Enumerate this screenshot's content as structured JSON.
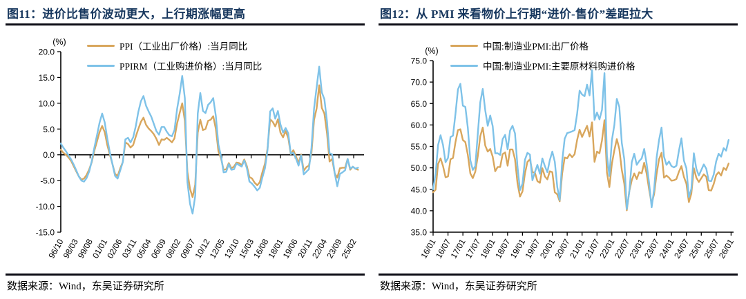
{
  "colors": {
    "title_navy": "#17375E",
    "rule_black": "#0b0b14",
    "line_tan": "#D8A65C",
    "line_blue": "#7EC2E8",
    "axis_black": "#000000"
  },
  "left_panel": {
    "title": "图11：进价比售价波动更大，上行期涨幅更高",
    "source": "数据来源：Wind，东吴证券研究所"
  },
  "right_panel": {
    "title": "图12：从 PMI 来看物价上行期“进价-售价”差距拉大",
    "source": "数据来源：Wind，东吴证券研究所"
  },
  "chart_data": [
    {
      "type": "line",
      "target": "ppi-chart-svg",
      "unit": "(%)",
      "ylim": [
        -15,
        20
      ],
      "yticks": [
        20,
        15,
        10,
        5,
        0,
        -5,
        -10,
        -15
      ],
      "x_axis_at": "zero",
      "x_start": "1996/10",
      "x_end": "2025/07",
      "xticks": [
        "96/10",
        "98/03",
        "99/08",
        "01/01",
        "02/06",
        "03/11",
        "05/04",
        "06/09",
        "08/02",
        "09/07",
        "10/12",
        "12/05",
        "13/10",
        "15/03",
        "16/08",
        "18/01",
        "19/06",
        "20/11",
        "22/04",
        "23/09",
        "25/02"
      ],
      "xtick_step_months": 17,
      "data_step_months": 3,
      "xmax_months": 352,
      "grid": false,
      "legend_position": "top-left-stacked",
      "series": [
        {
          "name": "PPI（工业出厂价格）:当月同比",
          "color": "#D8A65C",
          "values": [
            1.0,
            0.4,
            0.0,
            -0.5,
            -1.2,
            -2.2,
            -3.2,
            -4.2,
            -4.8,
            -4.6,
            -3.9,
            -2.8,
            -1.4,
            0.8,
            2.6,
            4.4,
            5.6,
            4.4,
            1.9,
            0.0,
            -1.8,
            -3.7,
            -4.1,
            -2.6,
            -1.4,
            2.4,
            2.1,
            1.4,
            1.9,
            3.5,
            5.0,
            6.4,
            7.2,
            5.8,
            5.1,
            4.6,
            4.0,
            3.1,
            1.9,
            3.0,
            2.9,
            3.3,
            2.9,
            2.4,
            3.2,
            6.1,
            8.1,
            10.0,
            6.6,
            -3.3,
            -6.6,
            -8.2,
            -5.8,
            4.3,
            6.8,
            4.8,
            5.0,
            6.6,
            6.8,
            7.5,
            5.0,
            0.7,
            -0.7,
            -2.9,
            -2.8,
            -1.6,
            -2.6,
            -2.3,
            -1.5,
            -1.6,
            -2.0,
            -0.9,
            -2.2,
            -4.3,
            -4.6,
            -5.4,
            -5.9,
            -5.3,
            -3.4,
            -1.7,
            1.2,
            6.9,
            6.4,
            5.5,
            6.9,
            4.3,
            3.4,
            4.6,
            3.3,
            0.1,
            0.9,
            -0.3,
            -1.6,
            0.1,
            -3.1,
            -2.4,
            -2.1,
            0.3,
            6.8,
            9.0,
            13.5,
            9.1,
            8.0,
            4.2,
            -1.3,
            -0.8,
            -3.6,
            -4.4,
            -2.6,
            -2.5,
            -2.5,
            -0.8,
            -2.9,
            -2.3,
            -2.7,
            -2.9
          ]
        },
        {
          "name": "PPIRM（工业购进价格）:当月同比",
          "color": "#7EC2E8",
          "values": [
            2.2,
            1.4,
            0.7,
            -0.1,
            -0.9,
            -1.9,
            -3.0,
            -4.2,
            -5.0,
            -5.2,
            -4.5,
            -3.2,
            -1.2,
            1.4,
            3.8,
            6.2,
            8.0,
            6.3,
            3.2,
            0.4,
            -1.8,
            -4.1,
            -4.6,
            -3.0,
            -1.4,
            3.0,
            3.3,
            2.4,
            3.4,
            5.5,
            8.3,
            10.4,
            11.4,
            9.5,
            8.4,
            7.4,
            6.0,
            4.6,
            3.9,
            5.4,
            5.4,
            4.5,
            3.8,
            3.6,
            4.8,
            8.9,
            11.8,
            15.3,
            11.0,
            -5.3,
            -9.5,
            -11.4,
            -8.0,
            8.0,
            12.0,
            8.5,
            8.1,
            9.7,
            10.2,
            11.0,
            7.5,
            2.0,
            -0.3,
            -3.4,
            -3.3,
            -1.8,
            -2.9,
            -2.8,
            -1.7,
            -2.0,
            -2.3,
            -1.1,
            -2.6,
            -5.2,
            -5.6,
            -6.2,
            -6.9,
            -6.4,
            -4.4,
            -2.6,
            0.9,
            8.4,
            9.0,
            7.0,
            8.5,
            5.9,
            4.3,
            5.2,
            4.2,
            0.2,
            0.4,
            -0.7,
            -2.1,
            -0.1,
            -3.8,
            -3.3,
            -2.8,
            1.3,
            9.0,
            13.1,
            17.1,
            12.1,
            10.8,
            6.5,
            0.3,
            0.1,
            -3.6,
            -6.1,
            -3.7,
            -3.4,
            -3.0,
            -0.8,
            -2.7,
            -2.3,
            -2.7,
            -2.5
          ]
        }
      ]
    },
    {
      "type": "line",
      "target": "pmi-chart-svg",
      "unit": "(%)",
      "ylim": [
        35,
        75
      ],
      "yticks": [
        75,
        70,
        65,
        60,
        55,
        50,
        45,
        40,
        35
      ],
      "x_axis_at": "bottom",
      "x_start": "2016/01",
      "x_end": "2025/12",
      "xticks": [
        "16/01",
        "16/07",
        "17/01",
        "17/07",
        "18/01",
        "18/07",
        "19/01",
        "19/07",
        "20/01",
        "20/07",
        "21/01",
        "21/07",
        "22/01",
        "22/07",
        "23/01",
        "23/07",
        "24/01",
        "24/07",
        "25/01",
        "25/07",
        "26/01"
      ],
      "xtick_step_months": 6,
      "data_step_months": 1,
      "xmax_months": 121,
      "grid": false,
      "legend_position": "top-left-stacked",
      "series": [
        {
          "name": "中国:制造业PMI:出厂价格",
          "color": "#D8A65C",
          "values": [
            44.3,
            44.9,
            50.9,
            52.2,
            50.4,
            47.8,
            48.0,
            52.0,
            52.3,
            56.0,
            58.8,
            59.0,
            56.5,
            56.0,
            53.0,
            48.7,
            47.6,
            49.1,
            52.7,
            57.4,
            59.4,
            55.2,
            53.8,
            54.4,
            52.6,
            49.2,
            50.2,
            50.2,
            53.2,
            53.6,
            50.5,
            54.3,
            54.3,
            52.0,
            46.4,
            43.3,
            44.5,
            48.7,
            51.4,
            52.0,
            49.0,
            48.9,
            46.9,
            46.5,
            49.9,
            48.0,
            47.3,
            49.2,
            49.0,
            44.3,
            43.8,
            42.2,
            48.7,
            52.4,
            52.2,
            53.2,
            52.5,
            53.2,
            56.5,
            58.9,
            57.2,
            58.5,
            59.8,
            57.3,
            60.6,
            51.4,
            53.8,
            53.4,
            56.4,
            61.1,
            48.9,
            45.5,
            50.9,
            54.1,
            56.7,
            54.4,
            49.5,
            46.3,
            40.1,
            44.5,
            47.1,
            48.7,
            47.4,
            49.0,
            48.7,
            51.2,
            48.6,
            44.9,
            41.6,
            43.9,
            48.6,
            52.0,
            53.5,
            47.7,
            48.2,
            47.7,
            47.0,
            47.1,
            47.4,
            49.1,
            50.4,
            47.9,
            46.3,
            42.0,
            44.0,
            49.9,
            47.7,
            46.7,
            47.6,
            48.5,
            47.9,
            44.8,
            44.7,
            46.2,
            48.3,
            49.0,
            48.2,
            50.0,
            49.5,
            51.0
          ]
        },
        {
          "name": "中国:制造业PMI:主要原材料购进价格",
          "color": "#7EC2E8",
          "values": [
            45.0,
            48.6,
            55.3,
            57.6,
            55.3,
            51.3,
            52.3,
            57.2,
            57.5,
            62.6,
            68.3,
            69.6,
            64.5,
            64.2,
            59.3,
            51.8,
            49.5,
            50.4,
            57.9,
            65.3,
            68.4,
            63.4,
            59.8,
            62.2,
            59.7,
            53.4,
            53.4,
            53.0,
            56.7,
            57.7,
            54.3,
            58.7,
            59.8,
            58.0,
            50.3,
            44.8,
            46.3,
            51.9,
            53.5,
            53.1,
            47.1,
            49.0,
            50.7,
            48.6,
            52.2,
            50.4,
            49.0,
            51.8,
            53.8,
            51.4,
            45.5,
            42.5,
            51.6,
            56.8,
            58.1,
            58.3,
            58.5,
            58.8,
            62.6,
            68.0,
            67.1,
            66.7,
            69.4,
            66.9,
            72.8,
            61.2,
            62.9,
            61.3,
            63.5,
            72.1,
            52.9,
            48.1,
            56.4,
            60.0,
            66.1,
            64.2,
            55.8,
            52.0,
            40.4,
            44.3,
            51.3,
            53.3,
            50.7,
            51.6,
            52.2,
            54.4,
            50.9,
            46.4,
            40.8,
            45.0,
            52.4,
            56.5,
            59.4,
            52.6,
            50.7,
            51.5,
            50.4,
            50.1,
            50.5,
            54.0,
            56.9,
            51.7,
            49.9,
            43.2,
            45.1,
            53.4,
            49.8,
            48.2,
            49.5,
            50.8,
            49.8,
            47.0,
            46.9,
            48.4,
            51.5,
            53.3,
            52.6,
            54.6,
            54.0,
            56.5
          ]
        }
      ]
    }
  ]
}
